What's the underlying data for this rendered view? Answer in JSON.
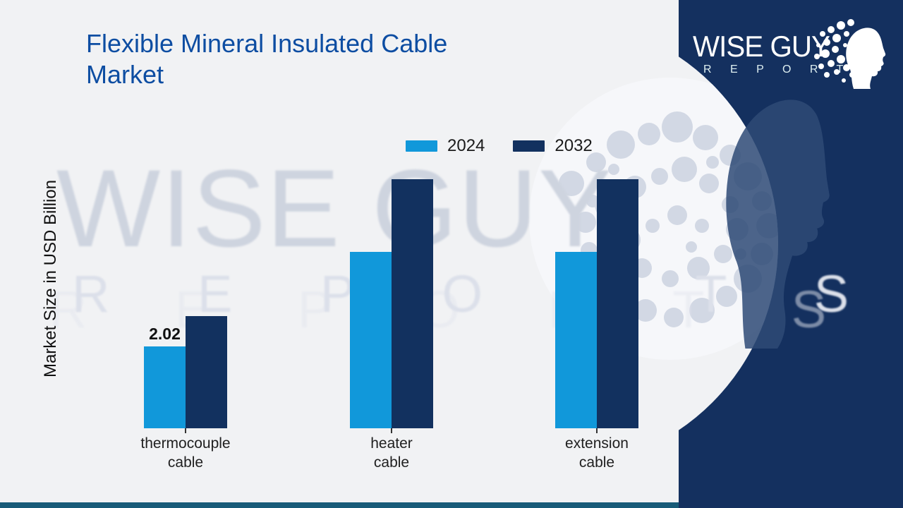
{
  "title": "Flexible Mineral Insulated Cable Market",
  "y_axis_label": "Market Size in USD Billion",
  "legend": {
    "items": [
      {
        "label": "2024",
        "color": "#1198da"
      },
      {
        "label": "2032",
        "color": "#12315f"
      }
    ]
  },
  "chart_data": {
    "type": "bar",
    "title": "Flexible Mineral Insulated Cable Market",
    "ylabel": "Market Size in USD Billion",
    "categories": [
      "thermocouple cable",
      "heater cable",
      "extension cable"
    ],
    "series": [
      {
        "name": "2024",
        "color": "#1198da",
        "values": [
          2.02,
          4.35,
          4.35
        ],
        "data_labels": [
          "2.02",
          "",
          ""
        ]
      },
      {
        "name": "2032",
        "color": "#12315f",
        "values": [
          2.77,
          6.15,
          6.15
        ],
        "data_labels": [
          "",
          "",
          ""
        ]
      }
    ],
    "ylim": [
      0,
      6.6
    ],
    "grid": false,
    "legend_position": "top-center",
    "axis_line": false
  },
  "logo": {
    "name_line": "WISE GUY",
    "sub_line_spaced": "R E P O R T S"
  },
  "watermark": {
    "line1": "WISE GUY",
    "line2": "R E P O R T S"
  },
  "colors": {
    "background": "#f1f2f4",
    "brand_panel": "#14305f",
    "title": "#0d4da2",
    "bar_2024": "#1198da",
    "bar_2032": "#12315f",
    "footer_bar": "#185b78",
    "label_text": "#1f1f1f"
  }
}
